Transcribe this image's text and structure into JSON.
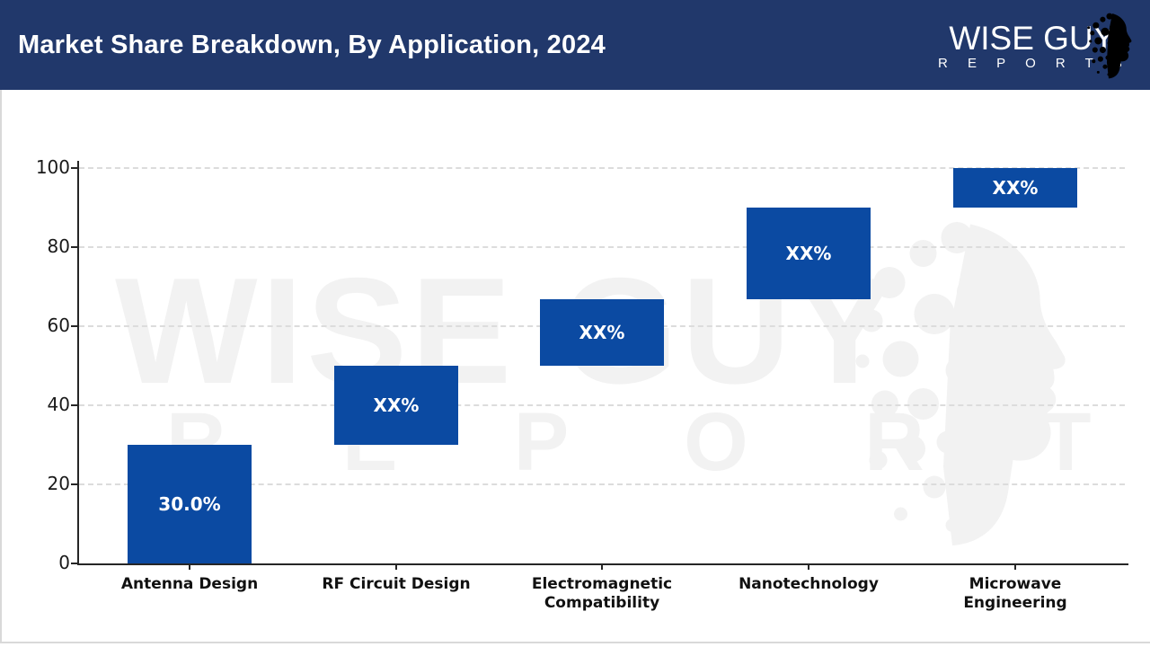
{
  "header": {
    "title": "Market Share Breakdown, By Application, 2024",
    "bg_color": "#21386b",
    "logo": {
      "line1": "WISE GUY",
      "line2": "R E P O R T S"
    }
  },
  "watermark": {
    "line1": "WISE GUY",
    "line2": "R E P O R T S"
  },
  "chart_data": {
    "type": "bar",
    "subtype": "waterfall-stacked-market-share",
    "title": "Market Share Breakdown, By Application, 2024",
    "categories": [
      "Antenna Design",
      "RF Circuit Design",
      "Electromagnetic Compatibility",
      "Nanotechnology",
      "Microwave Engineering"
    ],
    "segments": [
      {
        "category": "Antenna Design",
        "start": 0,
        "end": 30,
        "label": "30.0%"
      },
      {
        "category": "RF Circuit Design",
        "start": 30,
        "end": 50,
        "label": "XX%"
      },
      {
        "category": "Electromagnetic Compatibility",
        "start": 50,
        "end": 66.7,
        "label": "XX%"
      },
      {
        "category": "Nanotechnology",
        "start": 66.7,
        "end": 90,
        "label": "XX%"
      },
      {
        "category": "Microwave Engineering",
        "start": 90,
        "end": 100,
        "label": "XX%"
      }
    ],
    "ylim": [
      0,
      100
    ],
    "yticks": [
      0,
      20,
      40,
      60,
      80,
      100
    ],
    "grid": "horizontal-dashed",
    "legend": "none",
    "bar_color": "#0b4aa2",
    "bar_label_color": "#ffffff",
    "axis_color": "#262626",
    "gridline_color": "#dcdcdc"
  }
}
